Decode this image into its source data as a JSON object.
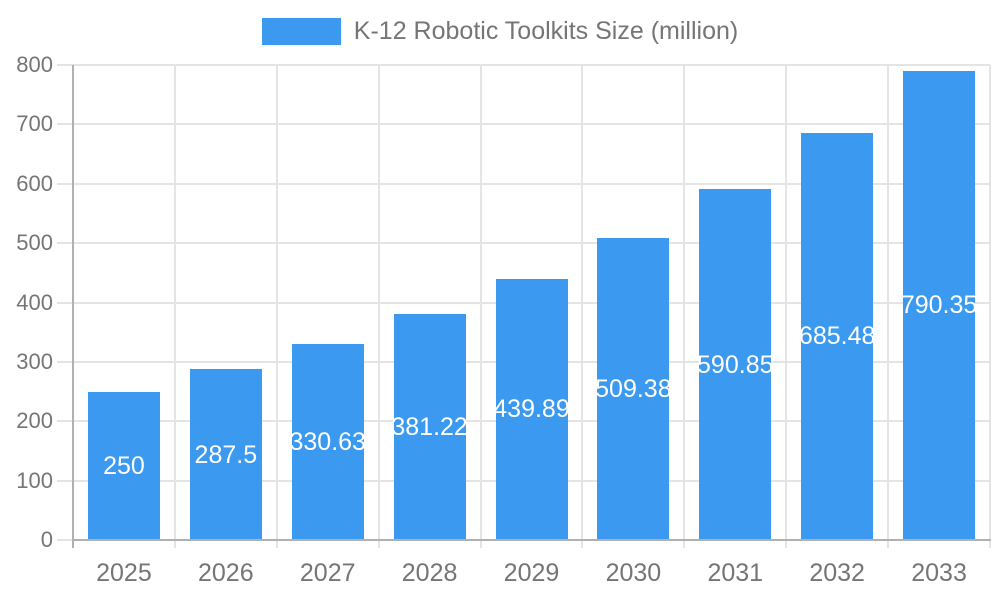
{
  "legend": {
    "label": "K-12 Robotic Toolkits Size (million)"
  },
  "chart_data": {
    "type": "bar",
    "title": "K-12 Robotic Toolkits Size (million)",
    "categories": [
      "2025",
      "2026",
      "2027",
      "2028",
      "2029",
      "2030",
      "2031",
      "2032",
      "2033"
    ],
    "values": [
      250,
      287.5,
      330.63,
      381.22,
      439.89,
      509.38,
      590.85,
      685.48,
      790.35
    ],
    "value_labels": [
      "250",
      "287.5",
      "330.63",
      "381.22",
      "439.89",
      "509.38",
      "590.85",
      "685.48",
      "790.35"
    ],
    "series_name": "K-12 Robotic Toolkits Size (million)",
    "xlabel": "",
    "ylabel": "",
    "ylim": [
      0,
      800
    ],
    "yticks": [
      0,
      100,
      200,
      300,
      400,
      500,
      600,
      700,
      800
    ],
    "grid": "horizontal and vertical light gray gridlines",
    "legend_position": "top-center",
    "value_label_position": "centered inside bar, white",
    "colors": {
      "bar": "#3b99f0",
      "grid": "#e4e4e4",
      "axis": "#b0b0b0",
      "tick_text": "#757575",
      "value_label": "#ffffff",
      "background": "#ffffff"
    }
  }
}
